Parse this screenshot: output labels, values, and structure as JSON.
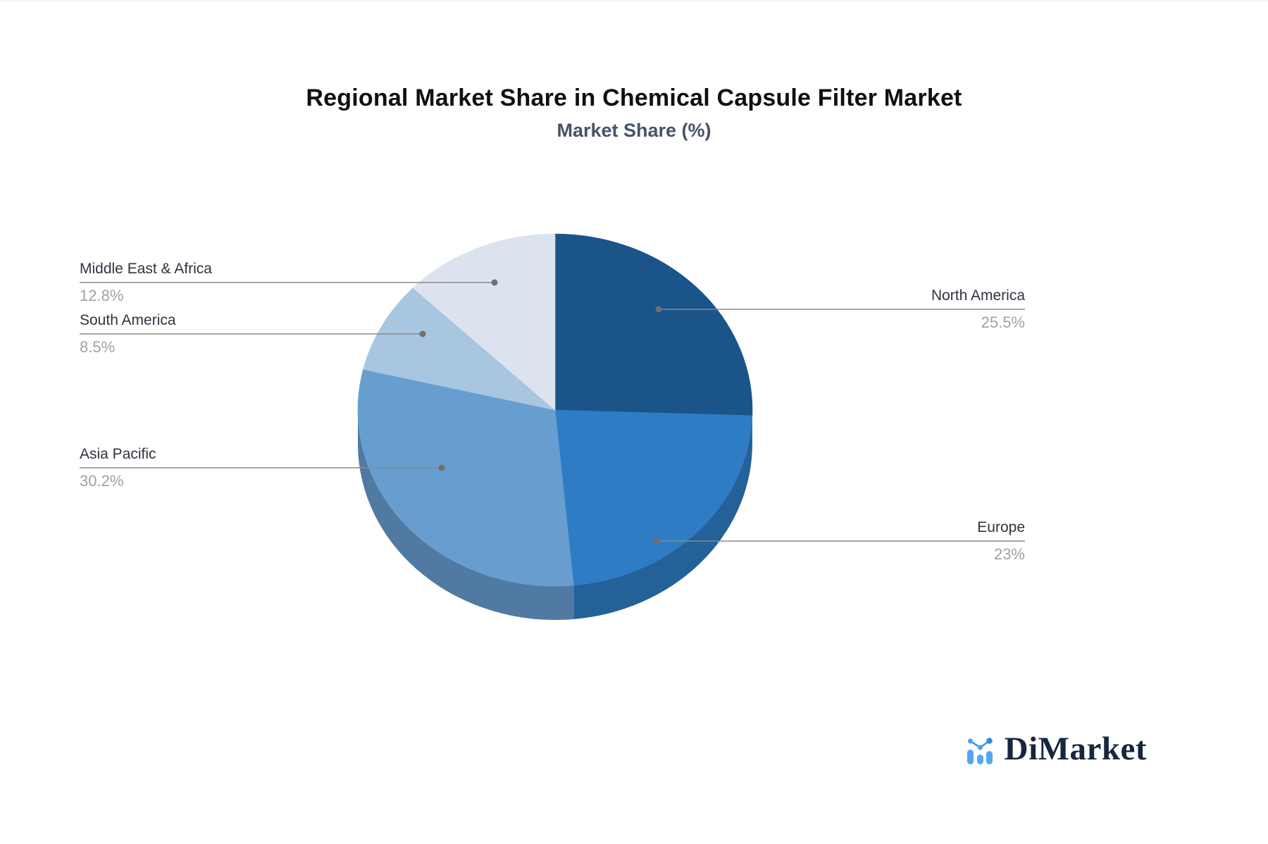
{
  "chart_data": {
    "type": "pie",
    "title": "Regional Market Share in Chemical Capsule Filter Market",
    "subtitle": "Market Share (%)",
    "unit": "%",
    "style": "3d-pie",
    "direction": "clockwise",
    "start_angle_deg": 0,
    "legend": "none",
    "label_style": "callout-leader-lines",
    "leader_line_color": "#8a8a8a",
    "anchor_dot_color": "#707070",
    "label_text_color": "#2e3440",
    "value_text_color": "#9da2a8",
    "slices": [
      {
        "label": "North America",
        "value": 25.5,
        "display": "25.5%",
        "color": "#1A5489",
        "side": "right"
      },
      {
        "label": "Europe",
        "value": 23,
        "display": "23%",
        "color": "#2E7CC3",
        "side": "right"
      },
      {
        "label": "Asia Pacific",
        "value": 30.2,
        "display": "30.2%",
        "color": "#689DD0",
        "side": "left"
      },
      {
        "label": "South America",
        "value": 8.5,
        "display": "8.5%",
        "color": "#A9C6E1",
        "side": "left"
      },
      {
        "label": "Middle East & Africa",
        "value": 12.8,
        "display": "12.8%",
        "color": "#DCE3EE",
        "side": "left"
      }
    ]
  },
  "branding": {
    "logo_text": "DiMarket",
    "logo_icon": "bar-line-chart-icon",
    "logo_text_color": "#17263f",
    "logo_accent_color": "#4FA3F2"
  }
}
